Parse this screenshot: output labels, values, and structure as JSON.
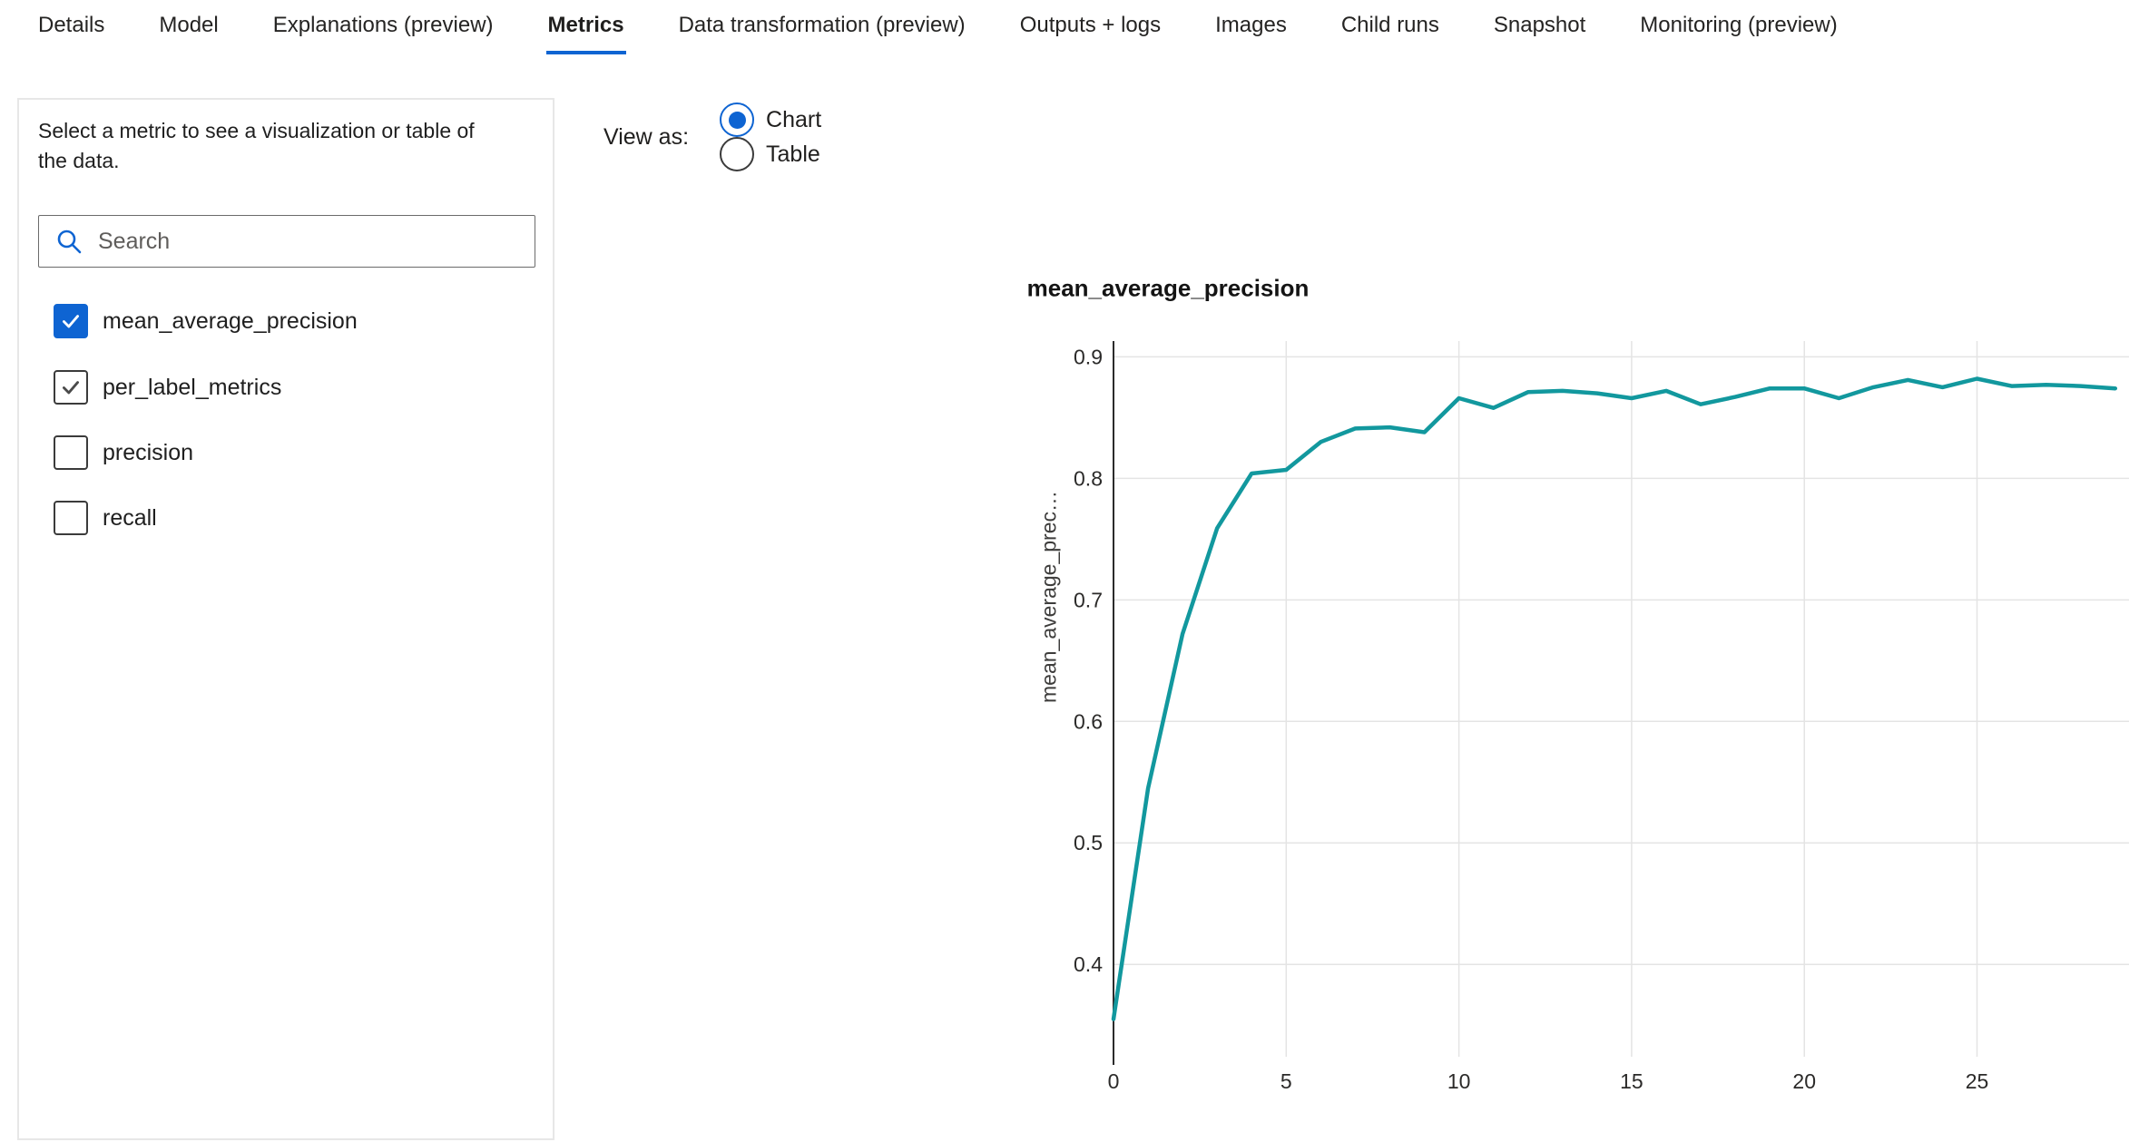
{
  "tabs": {
    "items": [
      {
        "label": "Details",
        "selected": false
      },
      {
        "label": "Model",
        "selected": false
      },
      {
        "label": "Explanations (preview)",
        "selected": false
      },
      {
        "label": "Metrics",
        "selected": true
      },
      {
        "label": "Data transformation (preview)",
        "selected": false
      },
      {
        "label": "Outputs + logs",
        "selected": false
      },
      {
        "label": "Images",
        "selected": false
      },
      {
        "label": "Child runs",
        "selected": false
      },
      {
        "label": "Snapshot",
        "selected": false
      },
      {
        "label": "Monitoring (preview)",
        "selected": false
      }
    ]
  },
  "sidebar": {
    "instruction": "Select a metric to see a visualization or table of the data.",
    "search_placeholder": "Search",
    "metrics": [
      {
        "label": "mean_average_precision",
        "state": "checked-primary"
      },
      {
        "label": "per_label_metrics",
        "state": "checked-outline"
      },
      {
        "label": "precision",
        "state": "unchecked"
      },
      {
        "label": "recall",
        "state": "unchecked"
      }
    ]
  },
  "view_as": {
    "label": "View as:",
    "options": [
      {
        "label": "Chart",
        "selected": true
      },
      {
        "label": "Table",
        "selected": false
      }
    ]
  },
  "colors": {
    "accent": "#0E64D2",
    "line": "#12989E",
    "grid": "#e4e4e4",
    "axis": "#2b2b2b"
  },
  "chart_data": {
    "type": "line",
    "title": "mean_average_precision",
    "ylabel": "mean_average_prec…",
    "xlabel": "",
    "x_ticks": [
      0,
      5,
      10,
      15,
      20,
      25
    ],
    "y_ticks": [
      0.4,
      0.5,
      0.6,
      0.7,
      0.8,
      0.9
    ],
    "xlim": [
      0,
      29.4
    ],
    "ylim": [
      0.324,
      0.913
    ],
    "grid": true,
    "legend": "none",
    "series": [
      {
        "name": "mean_average_precision",
        "x": [
          0,
          1,
          2,
          3,
          4,
          5,
          6,
          7,
          8,
          9,
          10,
          11,
          12,
          13,
          14,
          15,
          16,
          17,
          18,
          19,
          20,
          21,
          22,
          23,
          24,
          25,
          26,
          27,
          28,
          29
        ],
        "y": [
          0.355,
          0.545,
          0.672,
          0.759,
          0.804,
          0.807,
          0.83,
          0.841,
          0.842,
          0.838,
          0.866,
          0.858,
          0.871,
          0.872,
          0.87,
          0.866,
          0.872,
          0.861,
          0.867,
          0.874,
          0.874,
          0.866,
          0.875,
          0.881,
          0.875,
          0.882,
          0.876,
          0.877,
          0.876,
          0.874
        ]
      }
    ]
  }
}
